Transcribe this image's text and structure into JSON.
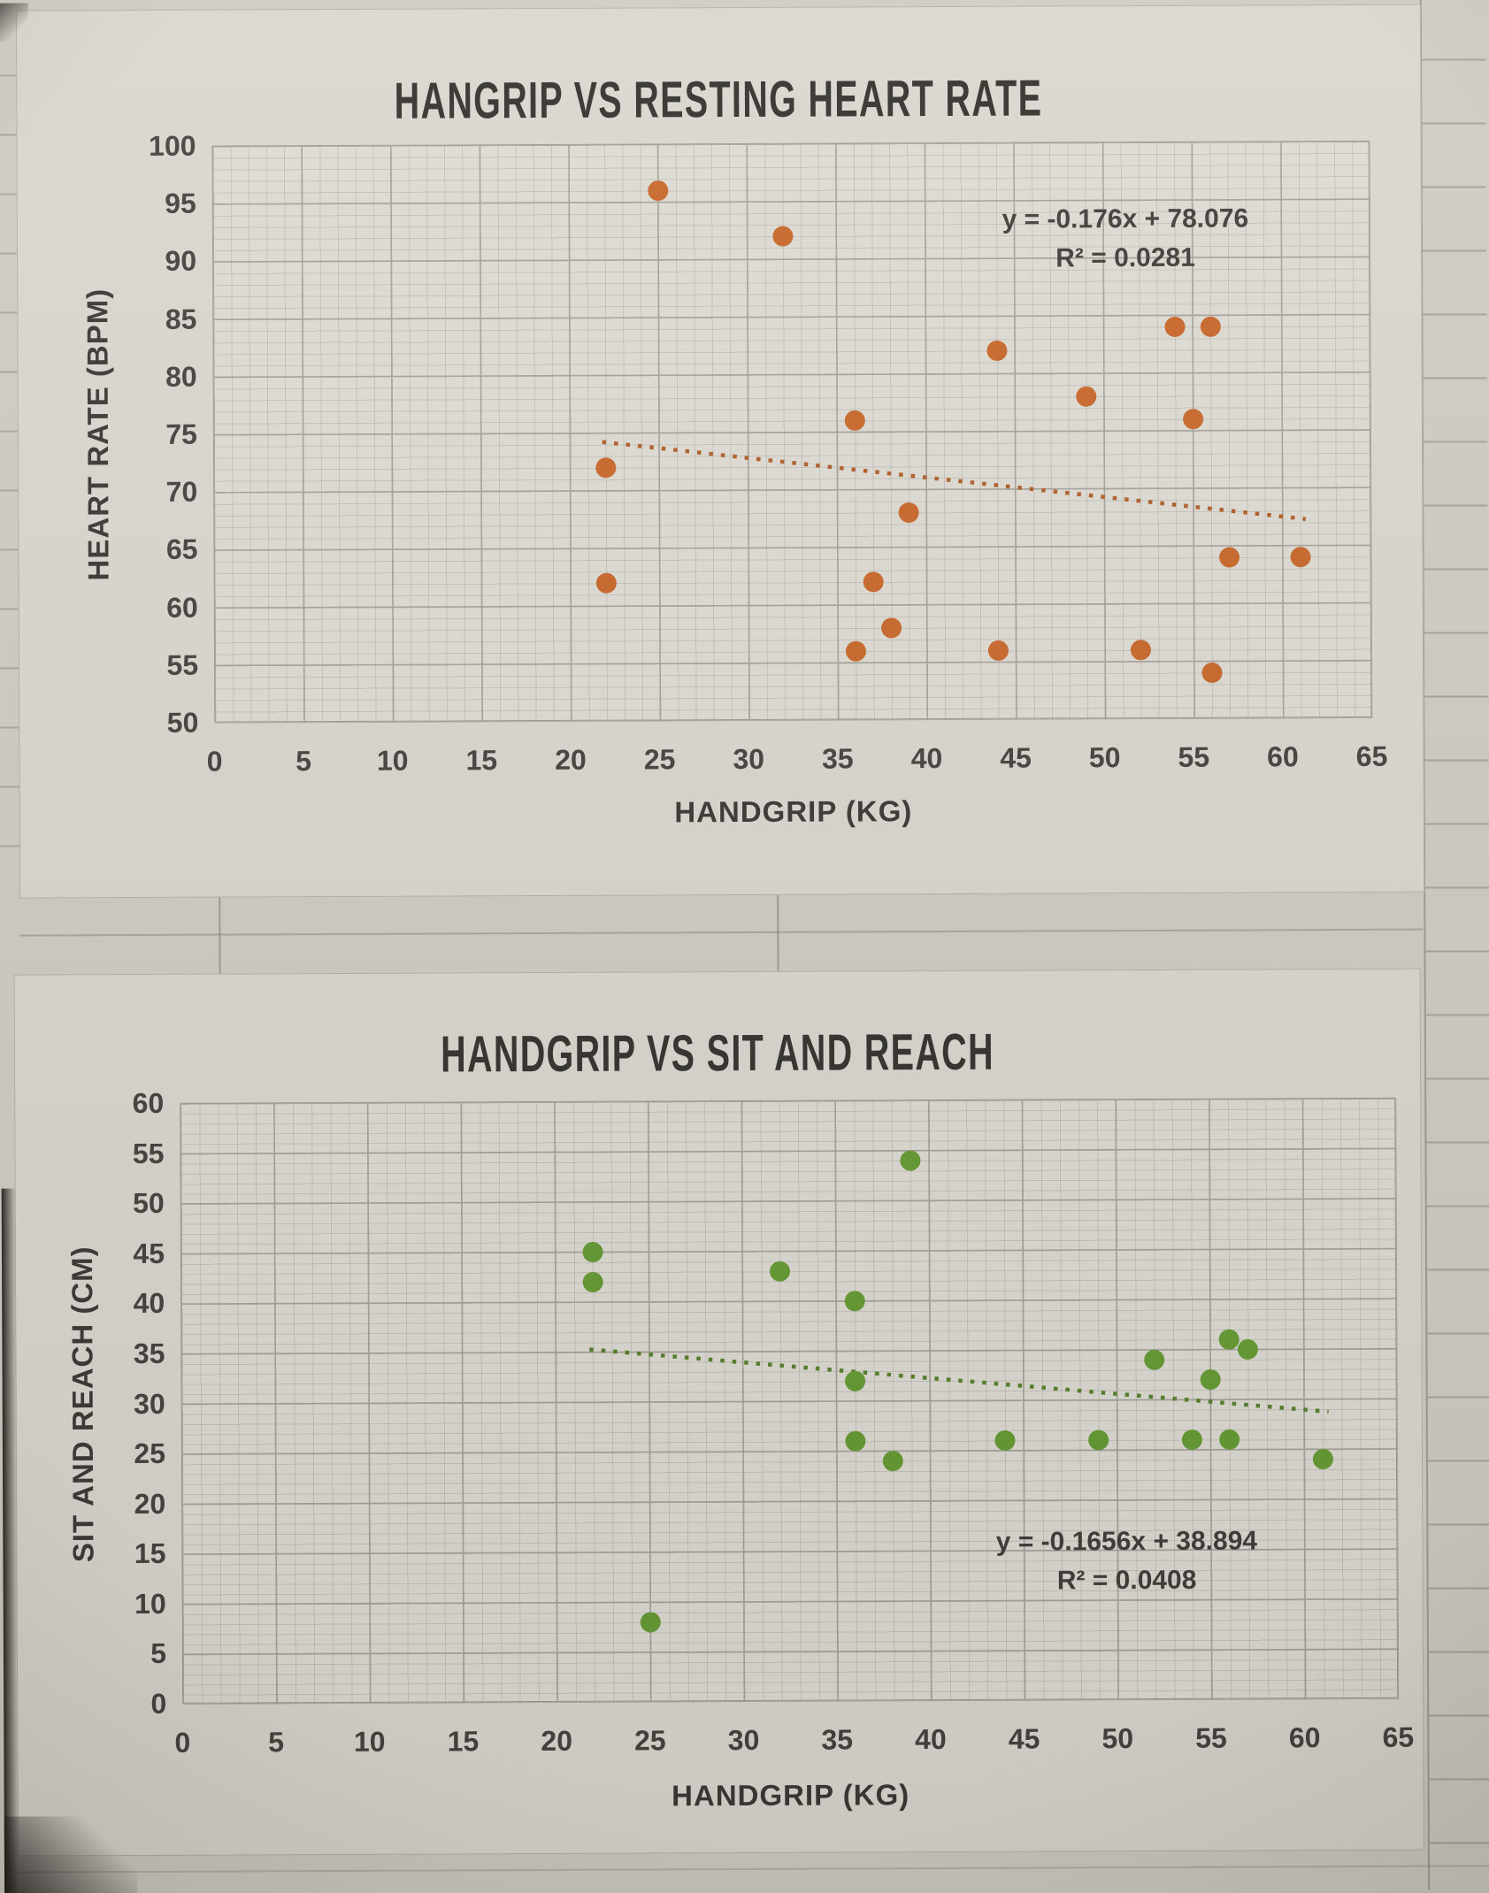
{
  "chart_data": [
    {
      "type": "scatter",
      "title": "HANGRIP VS RESTING HEART RATE",
      "xlabel": "HANDGRIP (KG)",
      "ylabel": "HEART RATE (BPM)",
      "xlim": [
        0,
        65
      ],
      "ylim": [
        50,
        100
      ],
      "x_ticks": [
        "0",
        "5",
        "10",
        "15",
        "20",
        "25",
        "30",
        "35",
        "40",
        "45",
        "50",
        "55",
        "60",
        "65"
      ],
      "y_ticks": [
        "50",
        "55",
        "60",
        "65",
        "70",
        "75",
        "80",
        "85",
        "90",
        "95",
        "100"
      ],
      "grid": "major and minor",
      "legend_position": "none",
      "points": [
        [
          25,
          96
        ],
        [
          32,
          92
        ],
        [
          22,
          72
        ],
        [
          22,
          62
        ],
        [
          36,
          76
        ],
        [
          37,
          62
        ],
        [
          38,
          58
        ],
        [
          36,
          56
        ],
        [
          39,
          68
        ],
        [
          44,
          82
        ],
        [
          44,
          56
        ],
        [
          49,
          78
        ],
        [
          52,
          56
        ],
        [
          54,
          84
        ],
        [
          55,
          76
        ],
        [
          56,
          84
        ],
        [
          56,
          54
        ],
        [
          57,
          64
        ],
        [
          61,
          64
        ]
      ],
      "trendline": {
        "equation_label": "y = -0.176x + 78.076",
        "r2_label": "R² = 0.0281",
        "slope": -0.176,
        "intercept": 78.076,
        "x_range": [
          21.8,
          61.3
        ],
        "style": "dotted"
      },
      "point_color": "#C8682B",
      "trendline_color": "#B05E27"
    },
    {
      "type": "scatter",
      "title": "HANDGRIP VS SIT AND REACH",
      "xlabel": "HANDGRIP (KG)",
      "ylabel": "SIT AND REACH (CM)",
      "xlim": [
        0,
        65
      ],
      "ylim": [
        0,
        60
      ],
      "x_ticks": [
        "0",
        "5",
        "10",
        "15",
        "20",
        "25",
        "30",
        "35",
        "40",
        "45",
        "50",
        "55",
        "60",
        "65"
      ],
      "y_ticks": [
        "0",
        "5",
        "10",
        "15",
        "20",
        "25",
        "30",
        "35",
        "40",
        "45",
        "50",
        "55",
        "60"
      ],
      "grid": "major and minor",
      "legend_position": "none",
      "points": [
        [
          22,
          45
        ],
        [
          22,
          42
        ],
        [
          25,
          8
        ],
        [
          32,
          43
        ],
        [
          36,
          40
        ],
        [
          36,
          32
        ],
        [
          36,
          26
        ],
        [
          38,
          24
        ],
        [
          39,
          54
        ],
        [
          44,
          26
        ],
        [
          49,
          26
        ],
        [
          52,
          34
        ],
        [
          54,
          26
        ],
        [
          55,
          32
        ],
        [
          56,
          36
        ],
        [
          56,
          26
        ],
        [
          57,
          35
        ],
        [
          61,
          24
        ]
      ],
      "trendline": {
        "equation_label": "y = -0.1656x + 38.894",
        "r2_label": "R² = 0.0408",
        "slope": -0.1656,
        "intercept": 38.894,
        "x_range": [
          21.8,
          61.3
        ],
        "style": "dotted"
      },
      "point_color": "#669B33",
      "trendline_color": "#55822A"
    }
  ]
}
